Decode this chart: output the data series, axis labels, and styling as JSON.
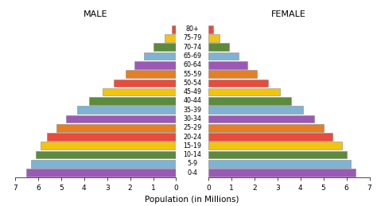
{
  "age_groups": [
    "0-4",
    "5-9",
    "10-14",
    "15-19",
    "20-24",
    "25-29",
    "30-34",
    "35-39",
    "40-44",
    "45-49",
    "50-54",
    "55-59",
    "60-64",
    "65-69",
    "70-74",
    "75-79",
    "80+"
  ],
  "male": [
    6.5,
    6.3,
    6.1,
    5.9,
    5.6,
    5.2,
    4.8,
    4.3,
    3.8,
    3.2,
    2.7,
    2.2,
    1.8,
    1.4,
    1.0,
    0.5,
    0.2
  ],
  "female": [
    6.4,
    6.2,
    6.0,
    5.8,
    5.4,
    5.0,
    4.6,
    4.1,
    3.6,
    3.1,
    2.6,
    2.1,
    1.7,
    1.3,
    0.9,
    0.5,
    0.2
  ],
  "colors": [
    "#9b59b6",
    "#7fb3d3",
    "#5d8a3c",
    "#f1c40f",
    "#e74c3c",
    "#e67e22",
    "#9b59b6",
    "#7fb3d3",
    "#5d8a3c",
    "#f1c40f",
    "#e74c3c",
    "#e67e22",
    "#9b59b6",
    "#7fb3d3",
    "#5d8a3c",
    "#f1c40f",
    "#e74c3c"
  ],
  "xlabel": "Population (in Millions)",
  "male_label": "MALE",
  "female_label": "FEMALE",
  "xlim": 7,
  "bg_color": "#ffffff",
  "bar_edge_color": "#888888",
  "bar_linewidth": 0.4
}
